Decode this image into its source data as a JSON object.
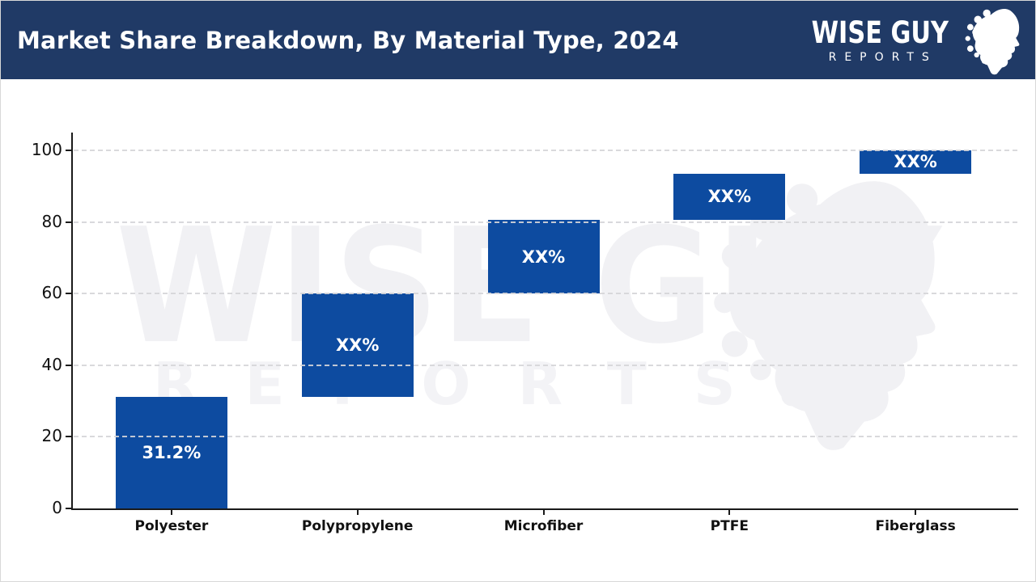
{
  "header": {
    "title": "Market Share Breakdown, By Material Type, 2024",
    "logo": {
      "line1": "WISE GUY",
      "line2": "REPORTS"
    }
  },
  "watermark": {
    "line1": "WISE GUY",
    "line2": "REPORTS"
  },
  "colors": {
    "header_bg": "#203a66",
    "bar": "#0d4ba0",
    "axis": "#1a1a1a",
    "grid": "#d5d5d8",
    "watermark": "#f1f1f4",
    "value_label": "#ffffff",
    "title_text": "#ffffff"
  },
  "chart_data": {
    "type": "bar",
    "subtype": "waterfall",
    "title": "Market Share Breakdown, By Material Type, 2024",
    "xlabel": "",
    "ylabel": "",
    "categories": [
      "Polyester",
      "Polypropylene",
      "Microfiber",
      "PTFE",
      "Fiberglass"
    ],
    "series": [
      {
        "name": "Market share (%)",
        "segments": [
          {
            "category": "Polyester",
            "start": 0,
            "end": 31.2,
            "value": 31.2,
            "label": "31.2%"
          },
          {
            "category": "Polypropylene",
            "start": 31.2,
            "end": 60.0,
            "value": 28.8,
            "label": "XX%"
          },
          {
            "category": "Microfiber",
            "start": 60.0,
            "end": 80.6,
            "value": 20.6,
            "label": "XX%"
          },
          {
            "category": "PTFE",
            "start": 80.6,
            "end": 93.5,
            "value": 12.9,
            "label": "XX%"
          },
          {
            "category": "Fiberglass",
            "start": 93.5,
            "end": 100.0,
            "value": 6.5,
            "label": "XX%"
          }
        ]
      }
    ],
    "ylim": [
      0,
      100
    ],
    "yticks": [
      0,
      20,
      40,
      60,
      80,
      100
    ],
    "grid": "horizontal-dashed",
    "legend": "none",
    "bar_color": "#0d4ba0"
  }
}
